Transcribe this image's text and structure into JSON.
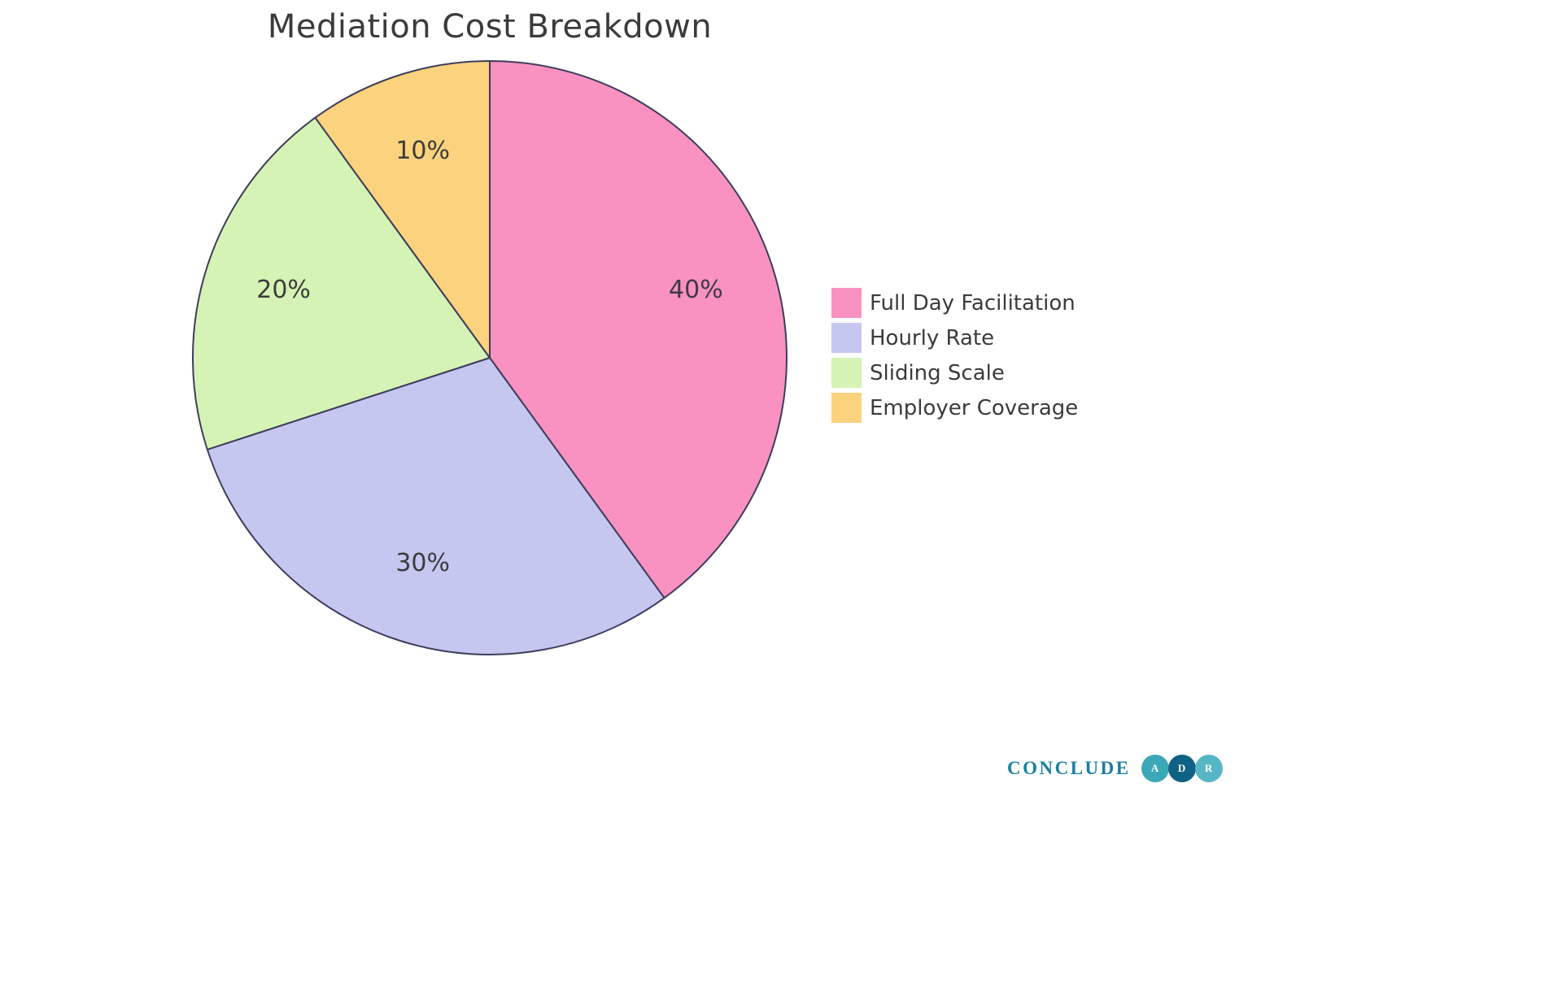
{
  "chart_data": {
    "type": "pie",
    "title": "Mediation Cost Breakdown",
    "labels": [
      "Full Day Facilitation",
      "Hourly Rate",
      "Sliding Scale",
      "Employer Coverage"
    ],
    "values": [
      40,
      30,
      20,
      10
    ],
    "value_labels": [
      "40%",
      "30%",
      "20%",
      "10%"
    ],
    "colors": [
      "#F991C1",
      "#C6C7F0",
      "#D5F3B5",
      "#FBD27D"
    ],
    "stroke_color": "#3D3D5C",
    "start_angle_deg": 0,
    "direction": "clockwise",
    "legend_position": "right",
    "grid": false
  },
  "logo": {
    "text": "CONCLUDE",
    "text_color": "#1B7F9E",
    "badges": [
      {
        "letter": "A",
        "color": "#3BA8B8"
      },
      {
        "letter": "D",
        "color": "#0F6285"
      },
      {
        "letter": "R",
        "color": "#57B6C5"
      }
    ]
  }
}
